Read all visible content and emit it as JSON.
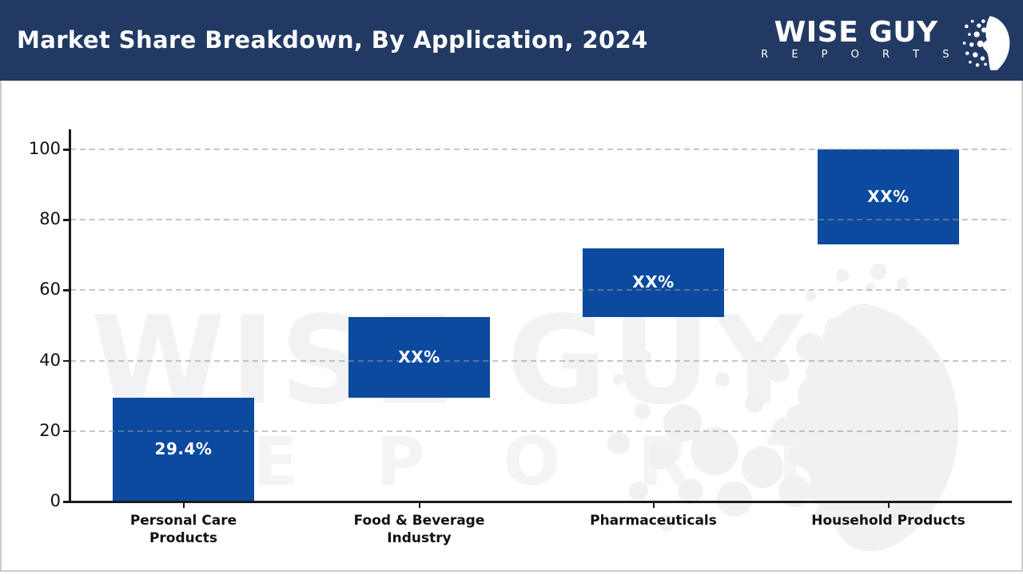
{
  "header": {
    "title": "Market Share Breakdown, By Application, 2024",
    "logo": {
      "line1": "WISE GUY",
      "line2": "R E P O R T S"
    }
  },
  "watermark": {
    "line1": "WISE GUY",
    "line2": "REPORTS"
  },
  "colors": {
    "header_bg": "#223A63",
    "bar": "#0B4A9E",
    "bar_label_text": "#ffffff",
    "axis": "#1a1a1a",
    "watermark": "#f2f2f4",
    "frame_border": "#cccccc"
  },
  "chart_data": {
    "type": "bar",
    "subtype": "waterfall-floating-bars",
    "title": "Market Share Breakdown, By Application, 2024",
    "categories": [
      "Personal Care Products",
      "Food & Beverage Industry",
      "Pharmaceuticals",
      "Household Products"
    ],
    "category_label_lines": [
      [
        "Personal Care",
        "Products"
      ],
      [
        "Food & Beverage",
        "Industry"
      ],
      [
        "Pharmaceuticals"
      ],
      [
        "Household Products"
      ]
    ],
    "segments": [
      {
        "category": "Personal Care Products",
        "start": 0,
        "end": 29.4,
        "label": "29.4%"
      },
      {
        "category": "Food & Beverage Industry",
        "start": 29.4,
        "end": 52.4,
        "label": "XX%"
      },
      {
        "category": "Pharmaceuticals",
        "start": 52.4,
        "end": 71.9,
        "label": "XX%"
      },
      {
        "category": "Household Products",
        "start": 73.0,
        "end": 100,
        "label": "XX%"
      }
    ],
    "y_ticks": [
      0,
      20,
      40,
      60,
      80,
      100
    ],
    "ylim": [
      0,
      100
    ],
    "xlabel": "",
    "ylabel": "",
    "grid": "horizontal-dashed",
    "legend": "none"
  }
}
